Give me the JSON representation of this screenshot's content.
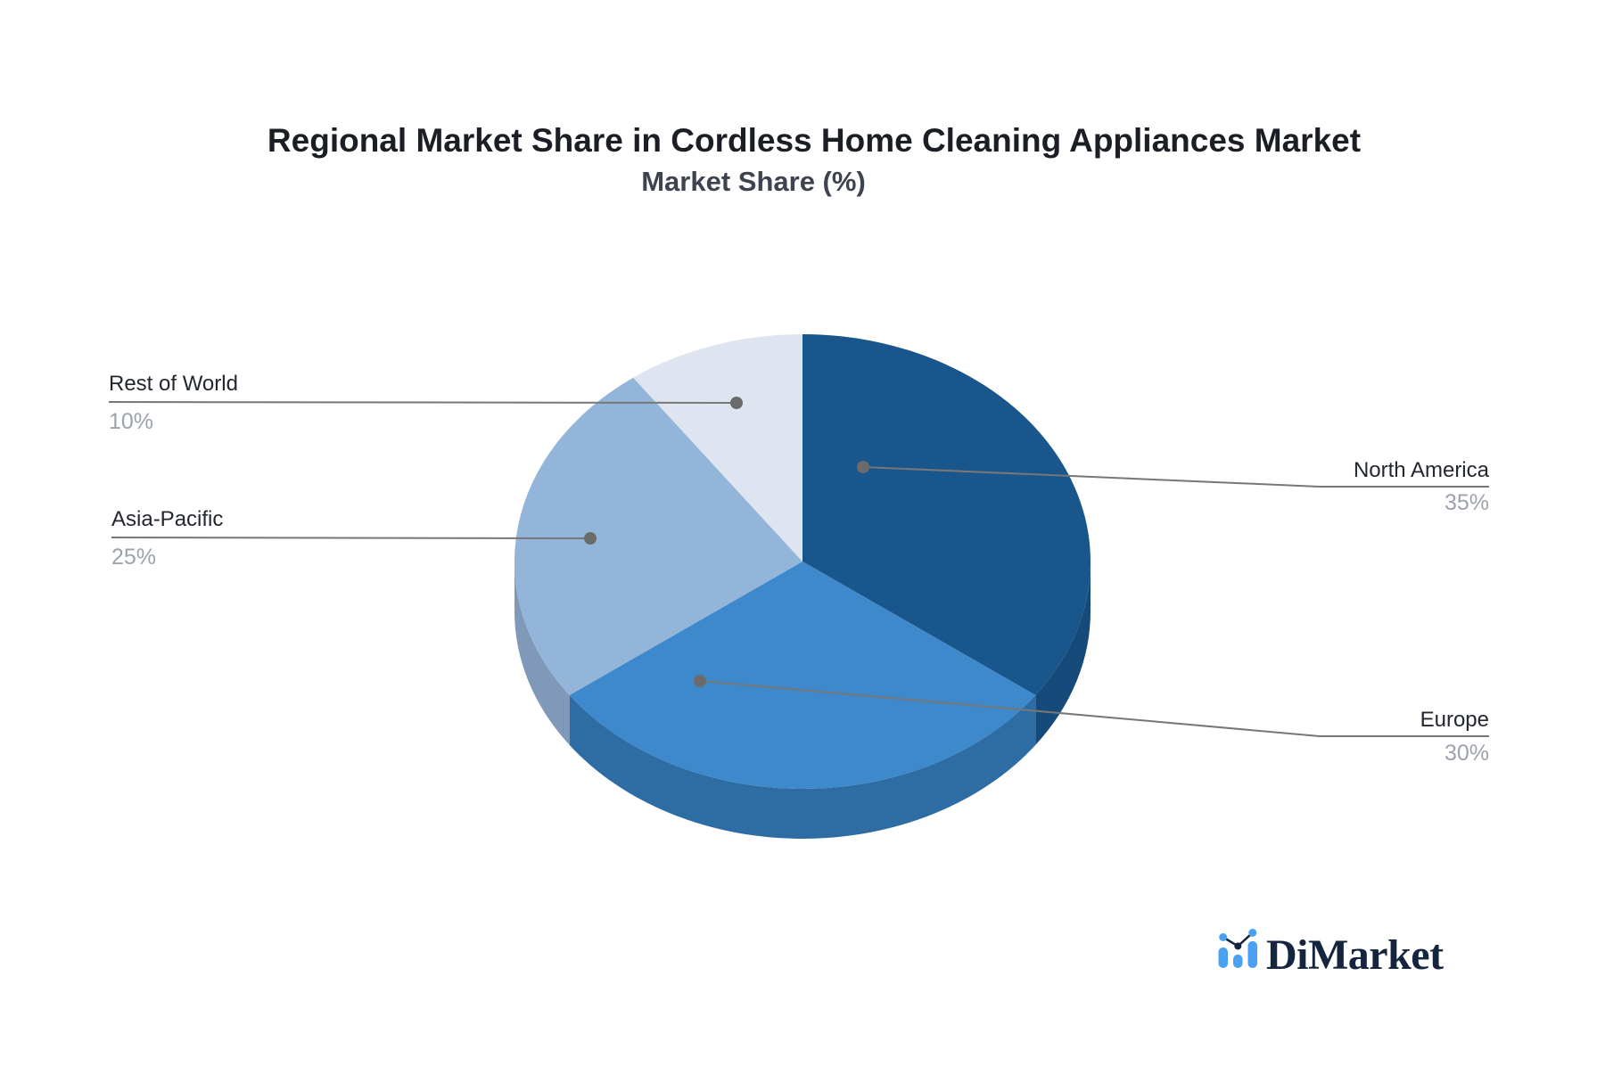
{
  "header": {
    "title": "Regional Market Share in Cordless Home Cleaning Appliances Market",
    "subtitle": "Market Share (%)"
  },
  "chart_data": {
    "type": "pie",
    "style": "3d",
    "title": "Regional Market Share in Cordless Home Cleaning Appliances Market",
    "subtitle": "Market Share (%)",
    "unit": "%",
    "start_angle_deg": 0,
    "direction": "clockwise",
    "legend_position": "callout-labels",
    "slices": [
      {
        "label": "North America",
        "value": 35,
        "pct_label": "35%",
        "color": "#19568C",
        "side_color": "#164A7A"
      },
      {
        "label": "Europe",
        "value": 30,
        "pct_label": "30%",
        "color": "#3D89CC",
        "side_color": "#2E6CA4"
      },
      {
        "label": "Asia-Pacific",
        "value": 25,
        "pct_label": "25%",
        "color": "#93B5D9",
        "side_color": "#8099B9"
      },
      {
        "label": "Rest of World",
        "value": 10,
        "pct_label": "10%",
        "color": "#DFE5F0",
        "side_color": "#C7CFDE"
      }
    ]
  },
  "branding": {
    "logo_text": "DiMarket",
    "logo_bar_color": "#4BA1F1",
    "logo_dark_color": "#15253E"
  },
  "colors": {
    "background": "#FFFFFF",
    "leader_line": "#777777",
    "label_text": "#23272E",
    "pct_text": "#9CA3AB"
  }
}
